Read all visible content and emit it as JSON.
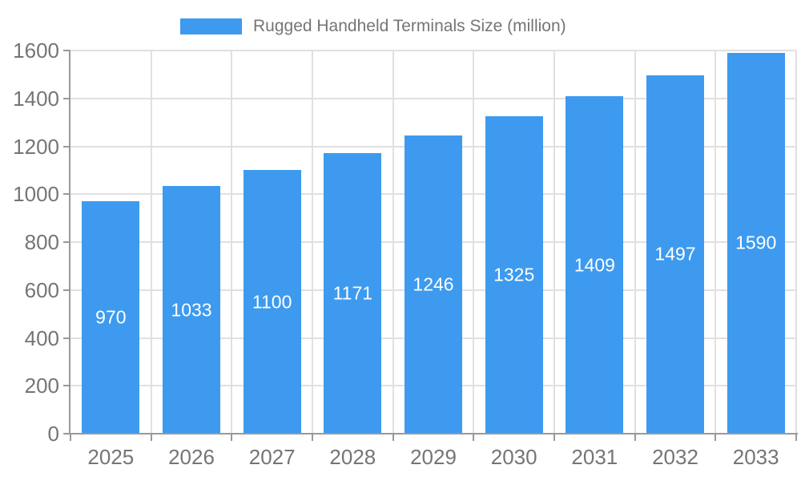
{
  "chart_data": {
    "type": "bar",
    "title": "",
    "legend": "Rugged Handheld Terminals Size (million)",
    "legend_position": "top-center",
    "categories": [
      "2025",
      "2026",
      "2027",
      "2028",
      "2029",
      "2030",
      "2031",
      "2032",
      "2033"
    ],
    "values": [
      970,
      1033,
      1100,
      1171,
      1246,
      1325,
      1409,
      1497,
      1590
    ],
    "xlabel": "",
    "ylabel": "",
    "ylim": [
      0,
      1600
    ],
    "yticks": [
      0,
      200,
      400,
      600,
      800,
      1000,
      1200,
      1400,
      1600
    ],
    "grid": true,
    "value_labels_position": "inside-center",
    "colors": {
      "bar": "#3D9AEF",
      "axis": "#999999",
      "grid": "#E0E0E0",
      "text": "#757575",
      "value_label": "#FFFFFF",
      "background": "#FFFFFF"
    }
  }
}
